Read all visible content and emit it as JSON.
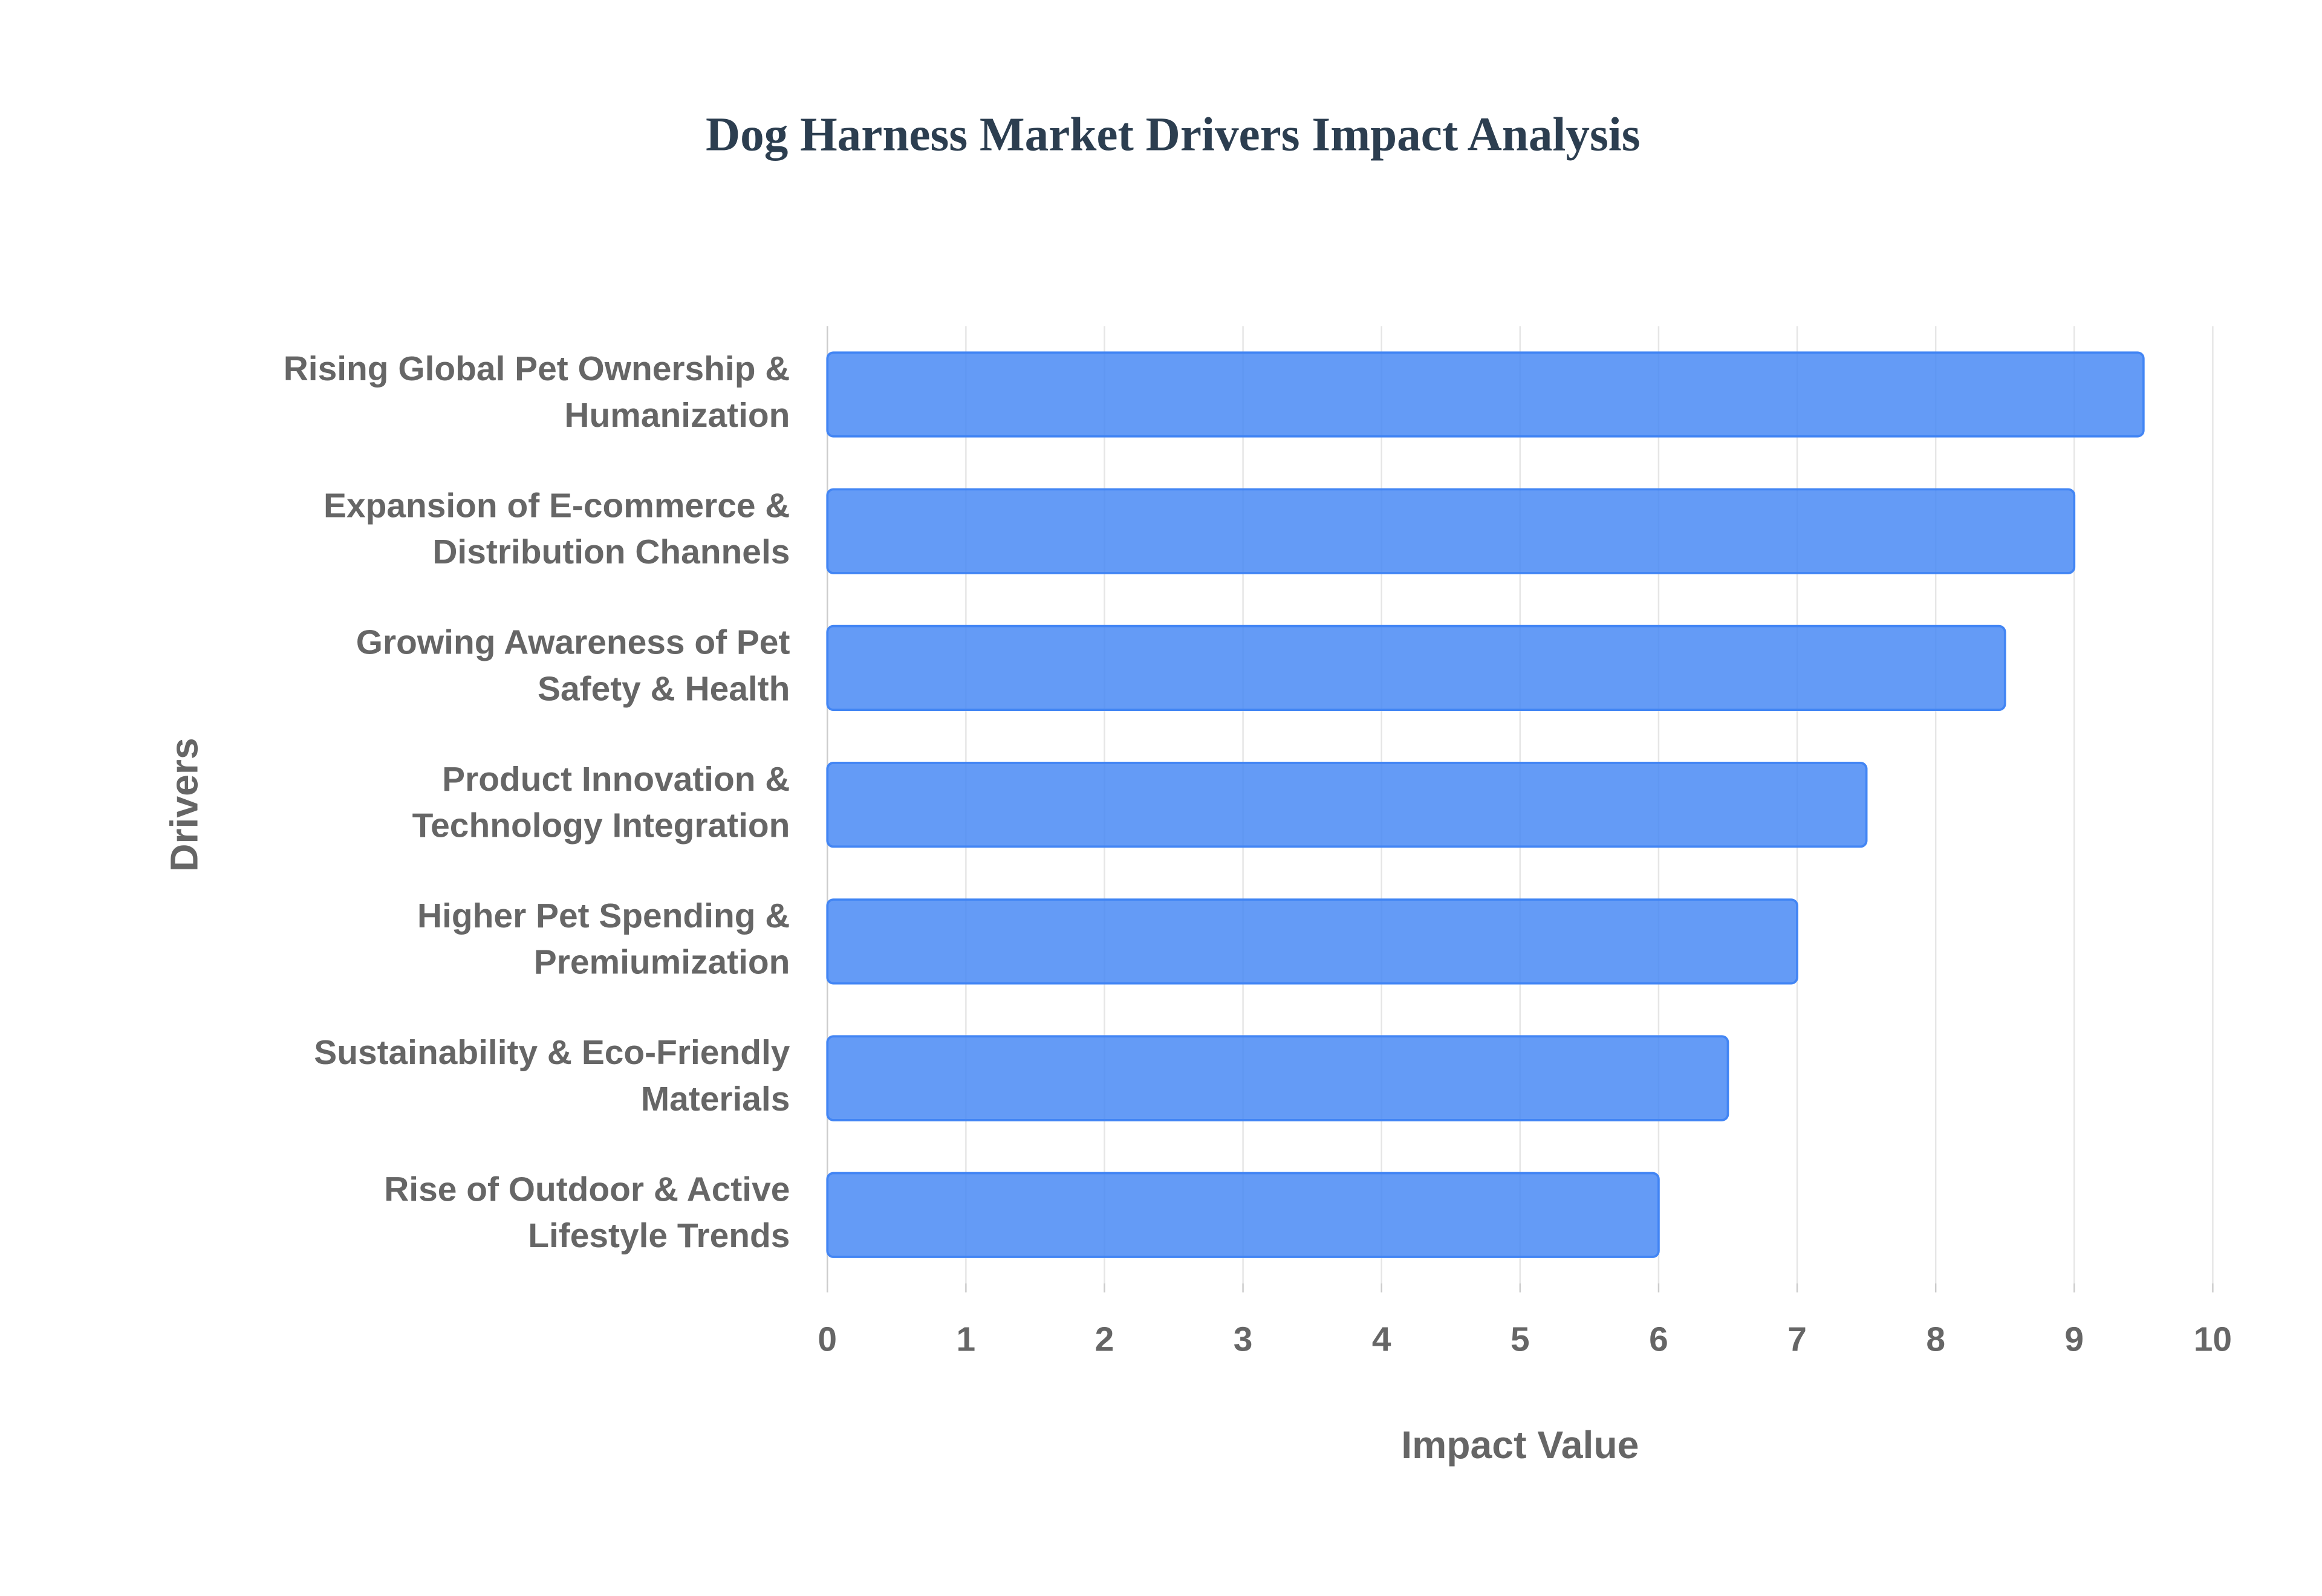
{
  "chart_data": {
    "type": "bar",
    "orientation": "horizontal",
    "title": "Dog Harness Market Drivers Impact Analysis",
    "x_label": "Impact Value",
    "y_label": "Drivers",
    "categories": [
      "Rising Global Pet Ownership & Humanization",
      "Expansion of E-commerce & Distribution Channels",
      "Growing Awareness of Pet Safety & Health",
      "Product Innovation & Technology Integration",
      "Higher Pet Spending & Premiumization",
      "Sustainability & Eco-Friendly Materials",
      "Rise of Outdoor & Active Lifestyle Trends"
    ],
    "values": [
      9.5,
      9,
      8.5,
      7.5,
      7,
      6.5,
      6
    ],
    "color": "#4285f4",
    "xlim": [
      0,
      10
    ],
    "xticks": [
      0,
      1,
      2,
      3,
      4,
      5,
      6,
      7,
      8,
      9,
      10
    ],
    "grid": true
  }
}
